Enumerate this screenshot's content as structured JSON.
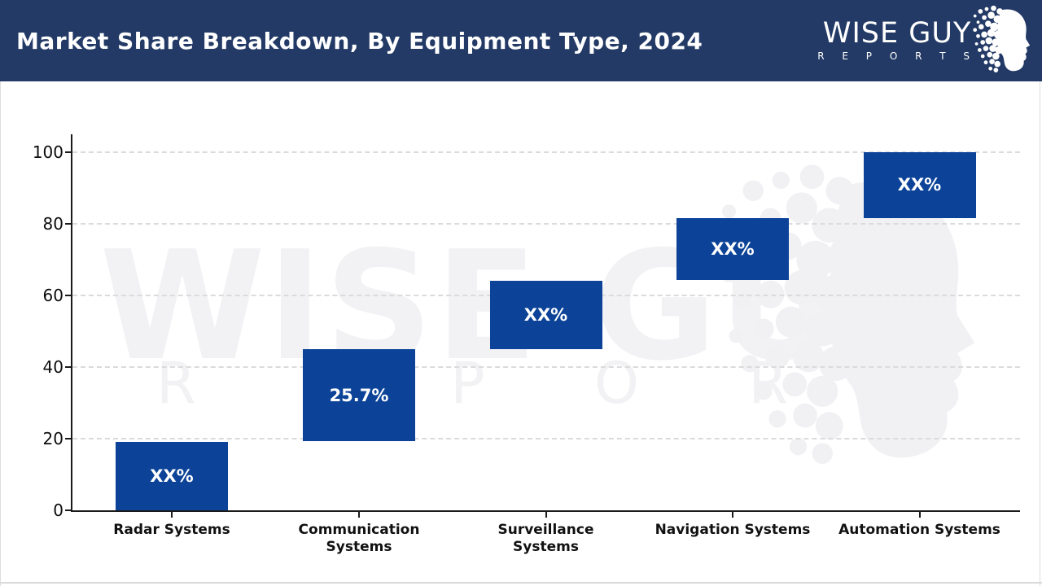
{
  "header": {
    "title": "Market Share Breakdown, By Equipment Type, 2024",
    "logo": {
      "line1": "WISE GUY",
      "line2": "R E P O R T S"
    }
  },
  "watermark": {
    "line1": "WISE GUY",
    "line2": "R E P O R T S"
  },
  "colors": {
    "header_bg": "#233A66",
    "bar": "#0C4398",
    "bar_label_text": "#FFFFFF",
    "grid": "#DBDBDB",
    "axis": "#1A1A1A",
    "watermark": "#F2F2F5"
  },
  "chart_data": {
    "type": "bar",
    "subtype": "floating-waterfall-bars",
    "title": "Market Share Breakdown, By Equipment Type, 2024",
    "categories": [
      "Radar Systems",
      "Communication Systems",
      "Surveillance Systems",
      "Navigation Systems",
      "Automation Systems"
    ],
    "category_label_lines": [
      [
        "Radar Systems"
      ],
      [
        "Communication",
        "Systems"
      ],
      [
        "Surveillance",
        "Systems"
      ],
      [
        "Navigation Systems"
      ],
      [
        "Automation Systems"
      ]
    ],
    "bars": [
      {
        "category": "Radar Systems",
        "start": 0,
        "end": 19.2,
        "span_label": "XX%"
      },
      {
        "category": "Communication Systems",
        "start": 19.3,
        "end": 45.0,
        "span_label": "25.7%"
      },
      {
        "category": "Surveillance Systems",
        "start": 45.0,
        "end": 64.2,
        "span_label": "XX%"
      },
      {
        "category": "Navigation Systems",
        "start": 64.3,
        "end": 81.5,
        "span_label": "XX%"
      },
      {
        "category": "Automation Systems",
        "start": 81.7,
        "end": 100,
        "span_label": "XX%"
      }
    ],
    "xlabel": "",
    "ylabel": "",
    "ylim": [
      0,
      100
    ],
    "yticks": [
      0,
      20,
      40,
      60,
      80,
      100
    ],
    "grid": "horizontal-dashed",
    "legend": "none",
    "bar_color": "#0C4398"
  }
}
